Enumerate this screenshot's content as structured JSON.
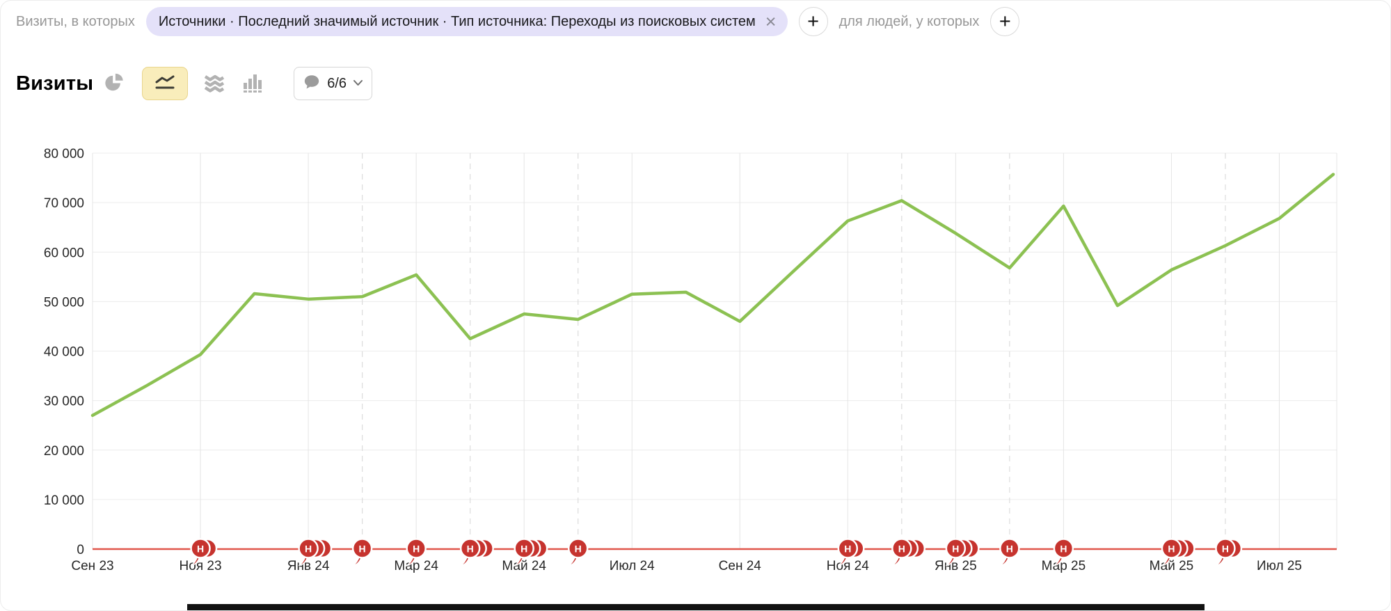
{
  "filter_bar": {
    "label_visits": "Визиты, в которых",
    "chip": {
      "text": "Источники · Последний значимый источник · Тип источника: Переходы из поисковых систем",
      "close": "×"
    },
    "add_segment_condition": "+",
    "label_people": "для людей, у которых",
    "add_people_condition": "+"
  },
  "chart_header": {
    "title": "Визиты",
    "chart_types": [
      "pie",
      "line",
      "stacked-area",
      "bars"
    ],
    "selected_chart_type": "line",
    "notes_badge": "6/6"
  },
  "chart_data": {
    "type": "line",
    "title": "Визиты",
    "x": [
      "Сен 23",
      "Окт 23",
      "Ноя 23",
      "Дек 23",
      "Янв 24",
      "Фев 24",
      "Мар 24",
      "Апр 24",
      "Май 24",
      "Июн 24",
      "Июл 24",
      "Авг 24",
      "Сен 24",
      "Окт 24",
      "Ноя 24",
      "Дек 24",
      "Янв 25",
      "Фев 25",
      "Мар 25",
      "Апр 25",
      "Май 25",
      "Июн 25",
      "Июл 25",
      "Авг 25"
    ],
    "values": [
      27000,
      33000,
      39300,
      51600,
      50500,
      51000,
      55400,
      42500,
      47500,
      46400,
      51500,
      51900,
      46000,
      56200,
      66300,
      70400,
      63800,
      56800,
      69300,
      49200,
      56400,
      61300,
      66800,
      75700
    ],
    "x_tick_labels": [
      "Сен 23",
      "Ноя 23",
      "Янв 24",
      "Мар 24",
      "Май 24",
      "Июл 24",
      "Сен 24",
      "Ноя 24",
      "Янв 25",
      "Мар 25",
      "Май 25",
      "Июл 25"
    ],
    "ylim": [
      0,
      80000
    ],
    "ytick_step": 10000,
    "ytick_labels": [
      "0",
      "10 000",
      "20 000",
      "30 000",
      "40 000",
      "50 000",
      "60 000",
      "70 000",
      "80 000"
    ],
    "grid": "horizontal lines each 10000; vertical solid lines at labeled months; dashed lines at annotated unlabeled months",
    "legend": "none",
    "line_color": "#8cc152",
    "baseline_color": "#e0564a",
    "marker_color": "#c6332e",
    "marker_letter": "Н",
    "markers": [
      {
        "month_index": 2,
        "bubbles": 2
      },
      {
        "month_index": 4,
        "bubbles": 3
      },
      {
        "month_index": 5,
        "bubbles": 1
      },
      {
        "month_index": 6,
        "bubbles": 1
      },
      {
        "month_index": 7,
        "bubbles": 3
      },
      {
        "month_index": 8,
        "bubbles": 3
      },
      {
        "month_index": 9,
        "bubbles": 1
      },
      {
        "month_index": 14,
        "bubbles": 2
      },
      {
        "month_index": 15,
        "bubbles": 3
      },
      {
        "month_index": 16,
        "bubbles": 3
      },
      {
        "month_index": 17,
        "bubbles": 1
      },
      {
        "month_index": 18,
        "bubbles": 1
      },
      {
        "month_index": 20,
        "bubbles": 3
      },
      {
        "month_index": 21,
        "bubbles": 2
      }
    ],
    "dashed_gridline_month_indices": [
      5,
      7,
      9,
      15,
      17,
      21
    ]
  },
  "colors": {
    "chip_bg": "#e4e1f9",
    "selected_type_bg": "#f9edbb",
    "selected_type_border": "#e9d58d",
    "icon_gray": "#b2b2b2",
    "grid_gray": "#ececec",
    "axis_text": "#262626"
  }
}
